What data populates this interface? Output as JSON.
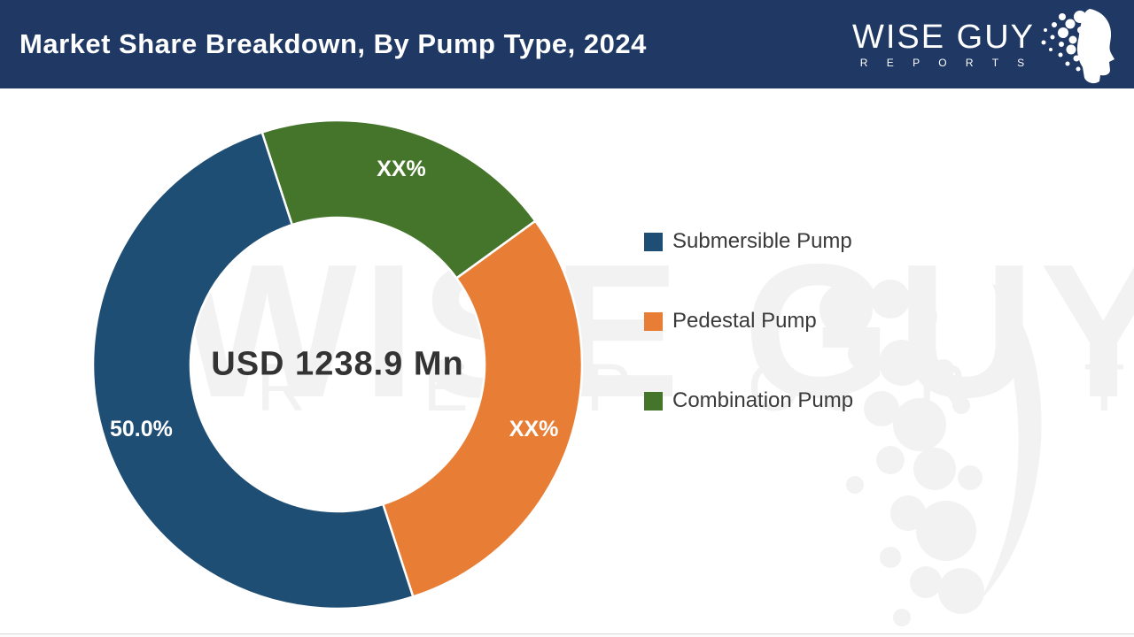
{
  "header": {
    "title": "Market Share Breakdown, By Pump Type, 2024",
    "logo": {
      "line1": "WISE GUY",
      "line2": "R E P O R T S"
    }
  },
  "watermark": {
    "line1": "WISE GUY",
    "line2": "R E P O R T S"
  },
  "colors": {
    "header_navy": "#1F3864",
    "title_text": "#FFFFFF",
    "center_text": "#333333",
    "legend_text": "#3A3A3A",
    "watermark": "#F2F2F2",
    "divider": "#D8D8D8",
    "submersible_blue": "#1F4E74",
    "pedestal_orange": "#E87E36",
    "combination_green": "#45752A"
  },
  "chart_data": {
    "type": "pie",
    "title": "Market Share Breakdown, By Pump Type, 2024",
    "donut": true,
    "center_label": "USD 1238.9 Mn",
    "start_angle_deg": -18,
    "clockwise": true,
    "segments": [
      {
        "name": "Combination Pump",
        "value_pct": 20,
        "display_label": "XX%",
        "color": "#45752A"
      },
      {
        "name": "Pedestal Pump",
        "value_pct": 30,
        "display_label": "XX%",
        "color": "#E87E36"
      },
      {
        "name": "Submersible Pump",
        "value_pct": 50,
        "display_label": "50.0%",
        "color": "#1F4E74"
      }
    ],
    "legend": [
      {
        "label": "Submersible Pump",
        "color": "#1F4E74"
      },
      {
        "label": "Pedestal Pump",
        "color": "#E87E36"
      },
      {
        "label": "Combination Pump",
        "color": "#45752A"
      }
    ],
    "legend_position": "right"
  }
}
